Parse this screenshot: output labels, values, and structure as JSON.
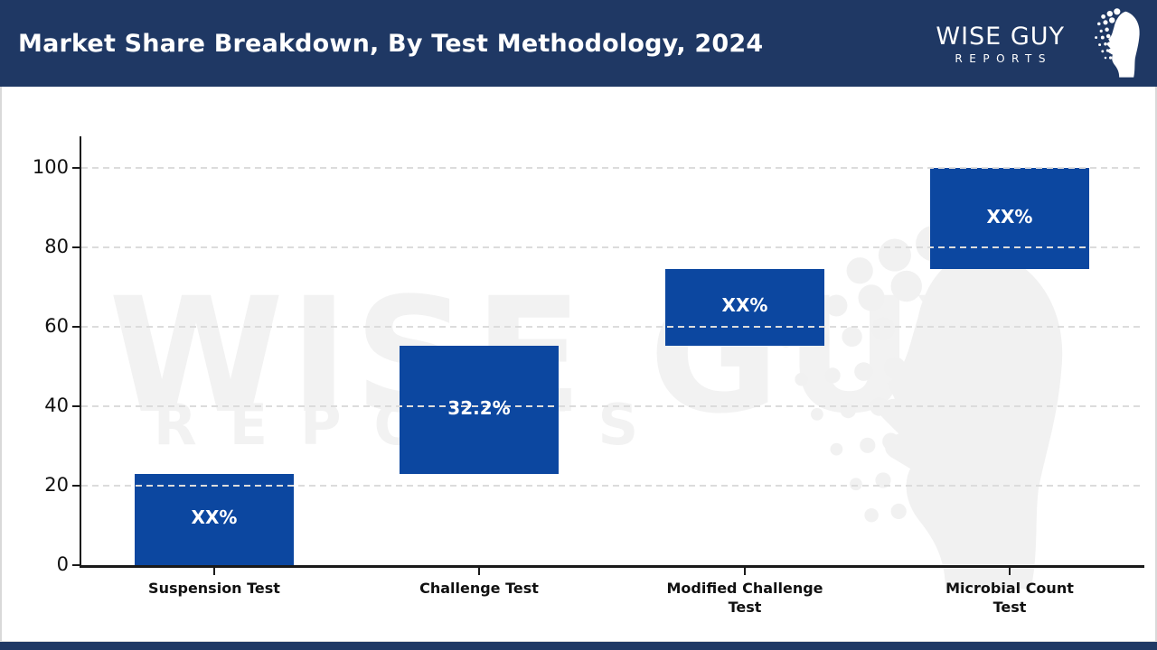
{
  "header": {
    "title": "Market Share Breakdown, By Test Methodology, 2024",
    "logo_line1": "WISE GUY",
    "logo_line2": "REPORTS"
  },
  "watermark": {
    "line1": "WISE GUY",
    "line2": "REPORTS"
  },
  "colors": {
    "header_bg": "#1f3864",
    "footer_bg": "#1f3864",
    "bar": "#0c47a0",
    "bar_label": "#ffffff",
    "grid": "#dcdcdc",
    "axis": "#1a1a1a",
    "watermark": "#f2f2f2"
  },
  "chart_data": {
    "type": "waterfall",
    "title": "Market Share Breakdown, By Test Methodology, 2024",
    "xlabel": "",
    "ylabel": "",
    "ylim": [
      0,
      100
    ],
    "yticks": [
      0,
      20,
      40,
      60,
      80,
      100
    ],
    "grid": "horizontal-dashed",
    "legend": null,
    "categories": [
      "Suspension Test",
      "Challenge Test",
      "Modified Challenge Test",
      "Microbial Count Test"
    ],
    "series": [
      {
        "category": "Suspension Test",
        "label_lines": [
          "Suspension Test"
        ],
        "start": 0,
        "end": 23,
        "value": 23,
        "value_label": "XX%"
      },
      {
        "category": "Challenge Test",
        "label_lines": [
          "Challenge Test"
        ],
        "start": 23,
        "end": 55.2,
        "value": 32.2,
        "value_label": "32.2%"
      },
      {
        "category": "Modified Challenge Test",
        "label_lines": [
          "Modified Challenge",
          "Test"
        ],
        "start": 55.2,
        "end": 74.6,
        "value": 19.4,
        "value_label": "XX%"
      },
      {
        "category": "Microbial Count Test",
        "label_lines": [
          "Microbial Count",
          "Test"
        ],
        "start": 74.6,
        "end": 100,
        "value": 25.4,
        "value_label": "XX%"
      }
    ]
  }
}
